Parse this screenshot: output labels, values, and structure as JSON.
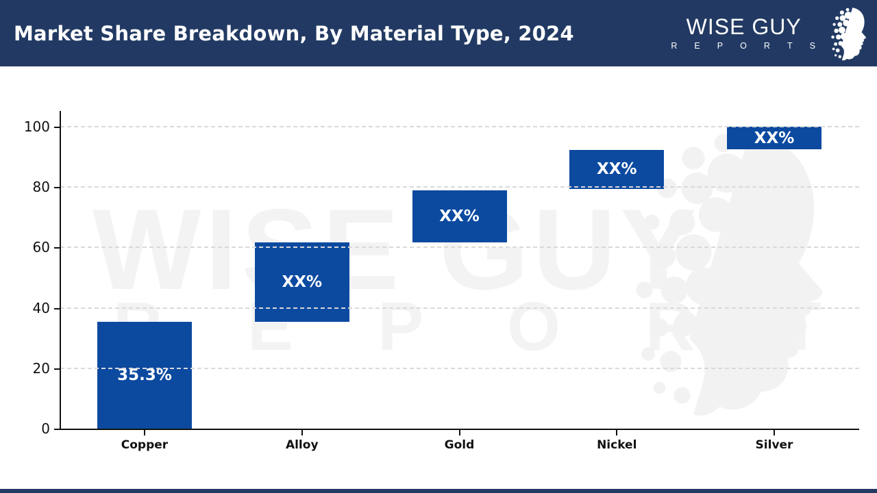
{
  "header": {
    "title": "Market Share Breakdown, By Material Type, 2024",
    "brand": {
      "name": "WISE GUY",
      "tagline": "REPORTS"
    }
  },
  "watermark": {
    "line1": "WISE GUY",
    "line2": "R E P O R T S"
  },
  "colors": {
    "header_bg": "#223a63",
    "footer_bg": "#223a63",
    "bar": "#0c4aa0",
    "bar_label": "#ffffff",
    "grid": "#d9d9d9",
    "axis": "#111111",
    "watermark": "#f3f3f3",
    "title_text": "#ffffff"
  },
  "chart_data": {
    "type": "bar",
    "subtype": "waterfall",
    "title": "Market Share Breakdown, By Material Type, 2024",
    "categories": [
      "Copper",
      "Alloy",
      "Gold",
      "Nickel",
      "Silver"
    ],
    "segments": [
      {
        "category": "Copper",
        "start": 0,
        "end": 35.3,
        "label": "35.3%"
      },
      {
        "category": "Alloy",
        "start": 35.3,
        "end": 61.6,
        "label": "XX%"
      },
      {
        "category": "Gold",
        "start": 61.6,
        "end": 79.0,
        "label": "XX%"
      },
      {
        "category": "Nickel",
        "start": 79.4,
        "end": 92.4,
        "label": "XX%"
      },
      {
        "category": "Silver",
        "start": 92.5,
        "end": 100,
        "label": "XX%"
      }
    ],
    "xlabel": "",
    "ylabel": "",
    "y_ticks": [
      0,
      20,
      40,
      60,
      80,
      100
    ],
    "ylim": [
      0,
      105
    ],
    "grid": "horizontal-dashed",
    "legend": "none"
  }
}
